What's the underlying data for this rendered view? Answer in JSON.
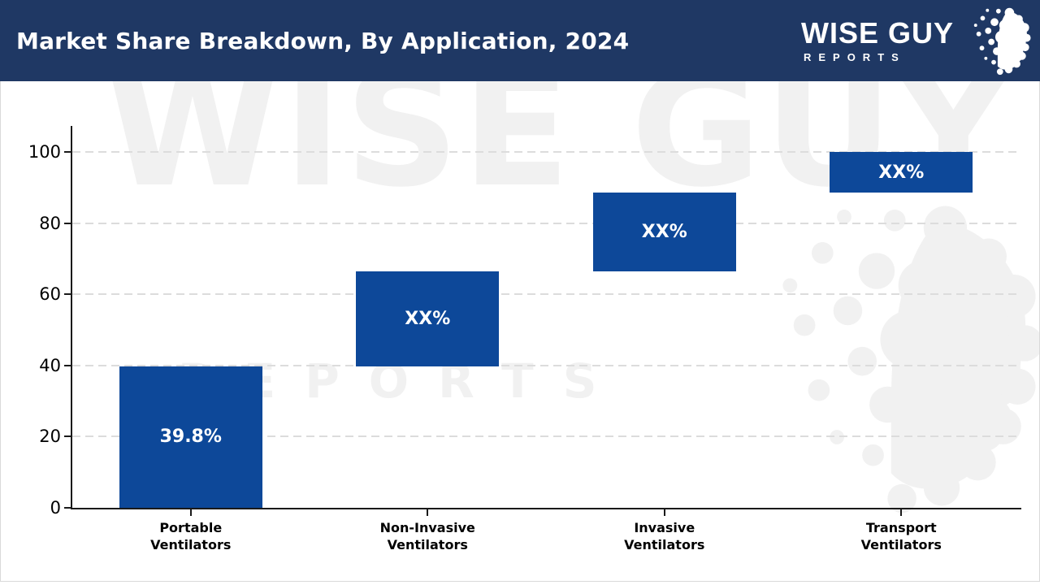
{
  "header": {
    "title": "Market Share Breakdown, By Application, 2024"
  },
  "logo": {
    "line1": "WISE GUY",
    "line2": "REPORTS"
  },
  "watermark": {
    "line1": "WISE GUY",
    "line2": "REPORTS"
  },
  "chart_data": {
    "type": "bar",
    "subtype": "waterfall-cumulative",
    "title": "Market Share Breakdown, By Application, 2024",
    "xlabel": "",
    "ylabel": "",
    "categories": [
      "Portable\nVentilators",
      "Non-Invasive\nVentilators",
      "Invasive\nVentilators",
      "Transport\nVentilators"
    ],
    "segments": [
      {
        "category": "Portable Ventilators",
        "label": "39.8%",
        "start": 0,
        "end": 39.8
      },
      {
        "category": "Non-Invasive Ventilators",
        "label": "XX%",
        "start": 39.8,
        "end": 66.5
      },
      {
        "category": "Invasive Ventilators",
        "label": "XX%",
        "start": 66.5,
        "end": 88.5
      },
      {
        "category": "Transport Ventilators",
        "label": "XX%",
        "start": 88.5,
        "end": 100
      }
    ],
    "yticks": [
      0,
      20,
      40,
      60,
      80,
      100
    ],
    "ylim": [
      0,
      107
    ],
    "grid": "horizontal-dashed",
    "legend": "none",
    "bar_color": "#0d4899",
    "bar_label_color": "#ffffff"
  },
  "colors": {
    "header_bg": "#1f3864",
    "bar_blue": "#0d4899",
    "watermark_gray": "#f1f1f1",
    "gridline_gray": "#dcdcdc",
    "axis_black": "#1a1a1a",
    "frame_border": "#d9d9d9"
  }
}
